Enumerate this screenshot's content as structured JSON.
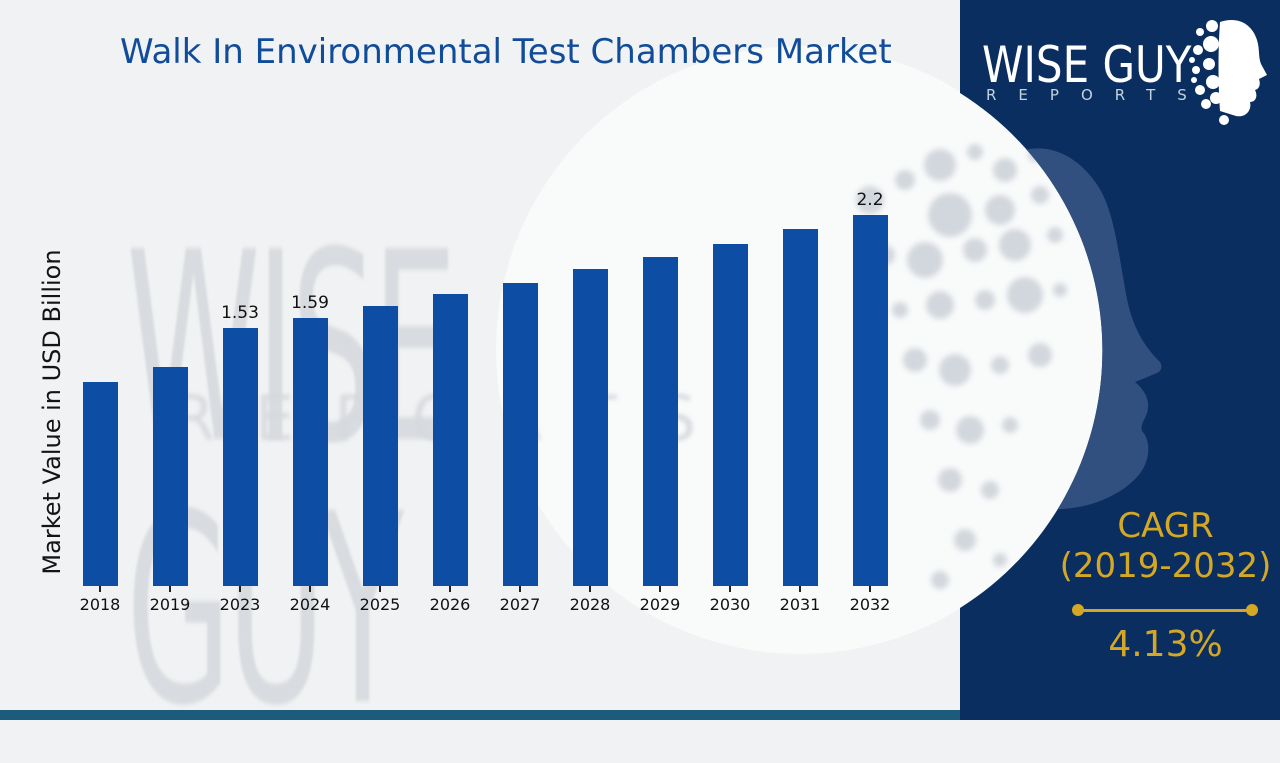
{
  "title": "Walk In Environmental Test Chambers Market",
  "chart_data": {
    "type": "bar",
    "title": "Walk In Environmental Test Chambers Market",
    "xlabel": "",
    "ylabel": "Market Value in USD Billion",
    "categories": [
      "2018",
      "2019",
      "2023",
      "2024",
      "2025",
      "2026",
      "2027",
      "2028",
      "2029",
      "2030",
      "2031",
      "2032"
    ],
    "values": [
      1.21,
      1.3,
      1.53,
      1.59,
      1.66,
      1.73,
      1.8,
      1.88,
      1.95,
      2.03,
      2.12,
      2.2
    ],
    "data_labels": [
      "",
      "",
      "1.53",
      "1.59",
      "",
      "",
      "",
      "",
      "",
      "",
      "",
      "2.2"
    ],
    "ylim": [
      0,
      2.4
    ],
    "grid": false,
    "legend": false,
    "bar_color": "#0d4da3"
  },
  "watermark": {
    "line1": "WISE GUY",
    "line2": "REPORTS"
  },
  "logo": {
    "line1": "WISE GUY",
    "line2": "REPORTS"
  },
  "cagr": {
    "heading": "CAGR",
    "range": "(2019-2032)",
    "value": "4.13%"
  },
  "colors": {
    "background": "#f1f2f3",
    "bar": "#0d4da3",
    "title_text": "#114c9a",
    "panel_navy": "#0b2e60",
    "face_blue": "#31507f",
    "accent_gold": "#d4a824",
    "teal_strip": "#1b5c7d",
    "watermark_gray": "#d6d9dd"
  }
}
